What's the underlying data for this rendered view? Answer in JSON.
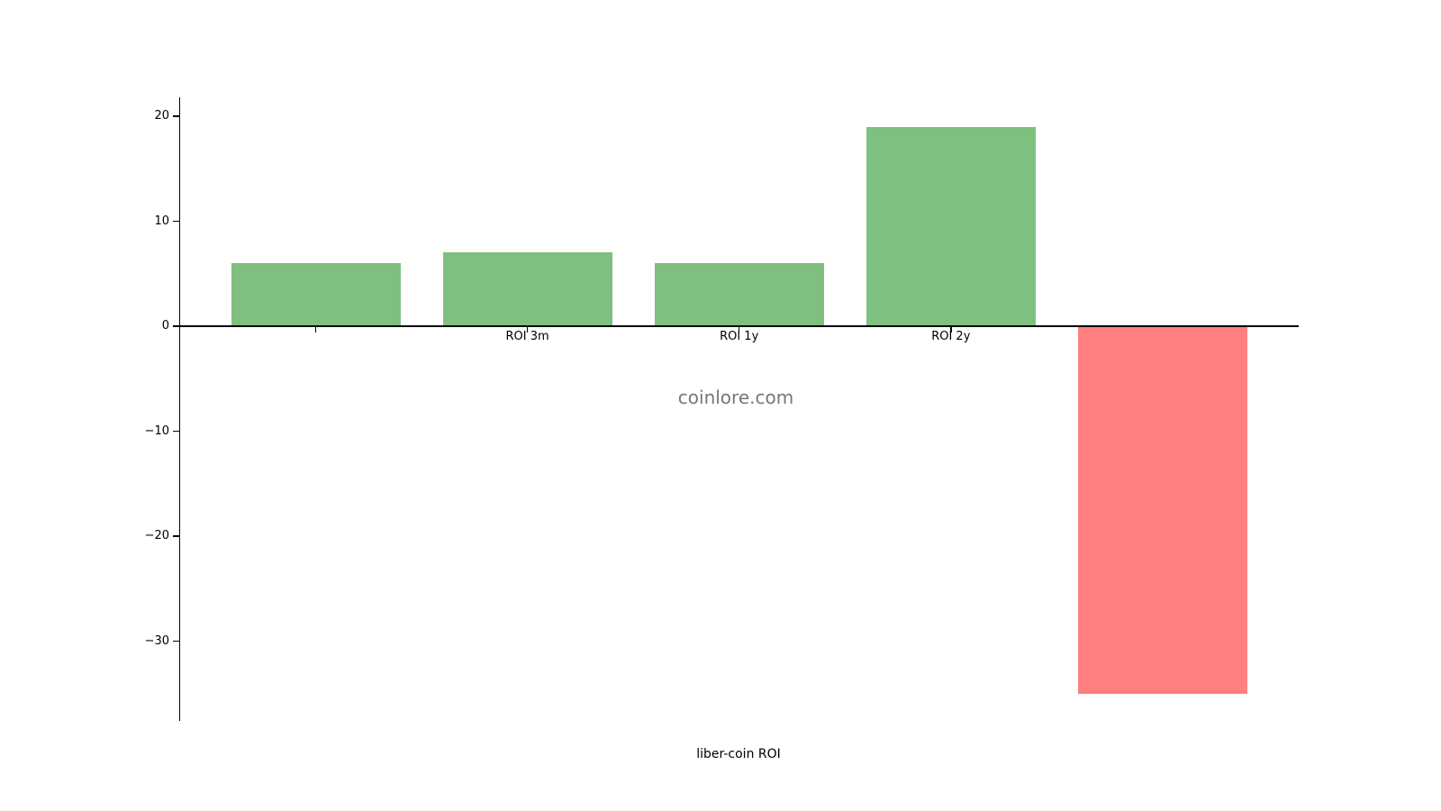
{
  "window": {
    "background": "#ffffff"
  },
  "watermark": {
    "text": "coinlore.com",
    "color": "#777777"
  },
  "chart_data": {
    "type": "bar",
    "title": "",
    "xlabel": "liber-coin ROI",
    "ylabel": "",
    "categories": [
      "",
      "ROI 3m",
      "ROI 1y",
      "ROI 2y",
      ""
    ],
    "values": [
      6,
      7,
      6,
      19,
      -35
    ],
    "yticks": [
      {
        "value": 20,
        "label": "20"
      },
      {
        "value": 10,
        "label": "10"
      },
      {
        "value": 0,
        "label": "0"
      },
      {
        "value": -10,
        "label": "−10"
      },
      {
        "value": -20,
        "label": "−20"
      },
      {
        "value": -30,
        "label": "−30"
      }
    ],
    "ylim": [
      -37.6,
      21.8
    ],
    "grid": false,
    "legend": false,
    "colors": {
      "positive_bar": "#7fbf7f",
      "negative_bar": "#ff7f7f",
      "axis": "#000000",
      "tick_label": "#000000"
    }
  }
}
